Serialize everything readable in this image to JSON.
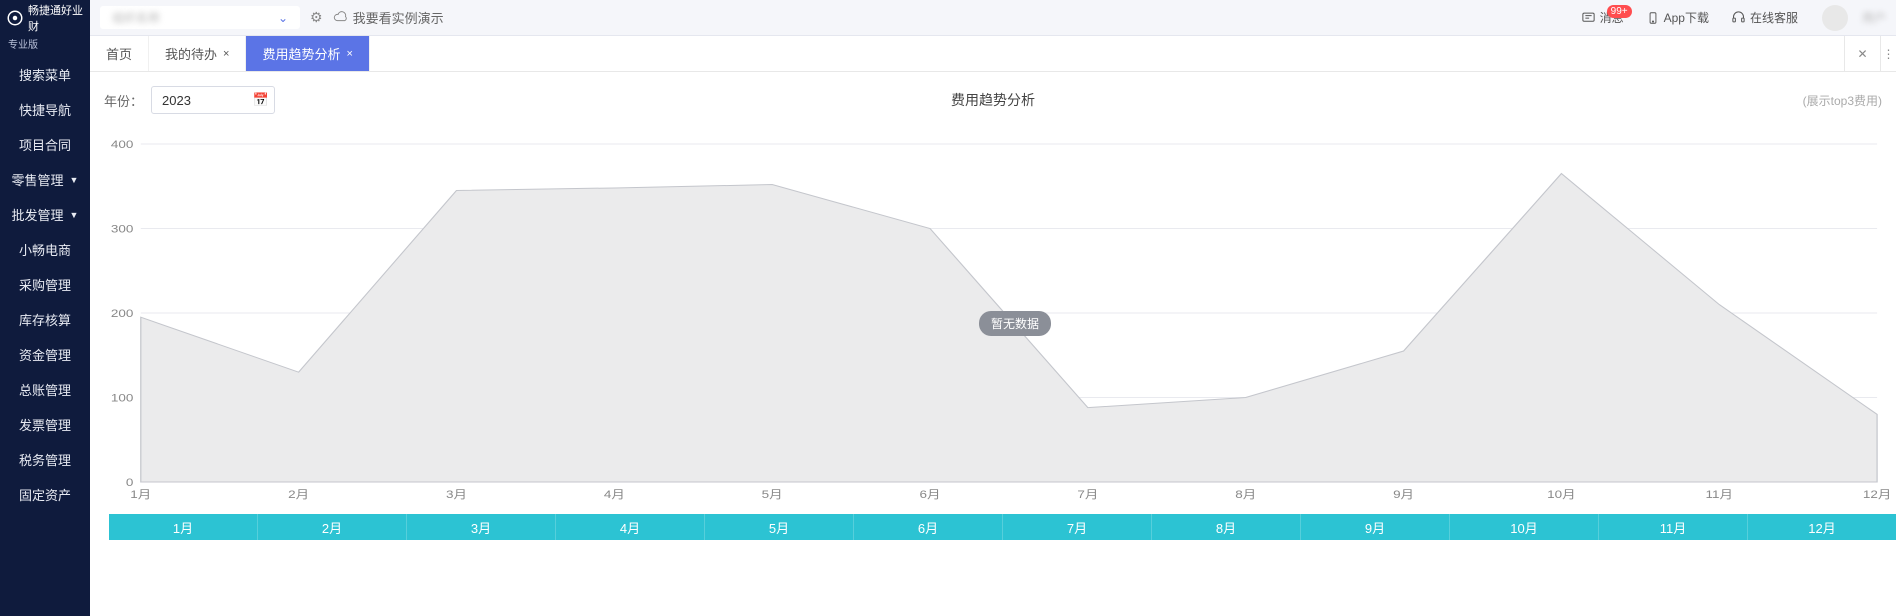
{
  "brand": {
    "name": "畅捷通好业财",
    "edition": "专业版"
  },
  "sidebar": {
    "items": [
      {
        "label": "搜索菜单",
        "caret": false
      },
      {
        "label": "快捷导航",
        "caret": false
      },
      {
        "label": "项目合同",
        "caret": false
      },
      {
        "label": "零售管理",
        "caret": true
      },
      {
        "label": "批发管理",
        "caret": true
      },
      {
        "label": "小畅电商",
        "caret": false
      },
      {
        "label": "采购管理",
        "caret": false
      },
      {
        "label": "库存核算",
        "caret": false
      },
      {
        "label": "资金管理",
        "caret": false
      },
      {
        "label": "总账管理",
        "caret": false
      },
      {
        "label": "发票管理",
        "caret": false
      },
      {
        "label": "税务管理",
        "caret": false
      },
      {
        "label": "固定资产",
        "caret": false
      }
    ]
  },
  "topbar": {
    "org_name": "组织名称",
    "demo_label": "我要看实例演示",
    "msg_label": "消息",
    "msg_badge": "99+",
    "app_label": "App下载",
    "service_label": "在线客服",
    "user_name": "用户"
  },
  "tabs": {
    "items": [
      {
        "label": "首页",
        "closable": false,
        "active": false
      },
      {
        "label": "我的待办",
        "closable": true,
        "active": false
      },
      {
        "label": "费用趋势分析",
        "closable": true,
        "active": true
      }
    ]
  },
  "filter": {
    "label": "年份：",
    "year": "2023"
  },
  "chart": {
    "title": "费用趋势分析",
    "right_note": "(展示top3费用)",
    "tooltip": "暂无数据",
    "type": "area",
    "x_labels": [
      "1月",
      "2月",
      "3月",
      "4月",
      "5月",
      "6月",
      "7月",
      "8月",
      "9月",
      "10月",
      "11月",
      "12月"
    ],
    "y_ticks": [
      0,
      100,
      200,
      300,
      400
    ],
    "ylim": [
      0,
      400
    ],
    "values": [
      195,
      130,
      345,
      348,
      352,
      300,
      88,
      100,
      155,
      365,
      210,
      80
    ],
    "area_fill": "#ebebec",
    "area_stroke": "#c4c6cc",
    "grid_color": "#e9eaef",
    "axis_text_color": "#888888",
    "background_color": "#ffffff",
    "strip_color": "#2cc3d3",
    "axis_fontsize": 11
  },
  "month_strip": [
    "1月",
    "2月",
    "3月",
    "4月",
    "5月",
    "6月",
    "7月",
    "8月",
    "9月",
    "10月",
    "11月",
    "12月"
  ]
}
